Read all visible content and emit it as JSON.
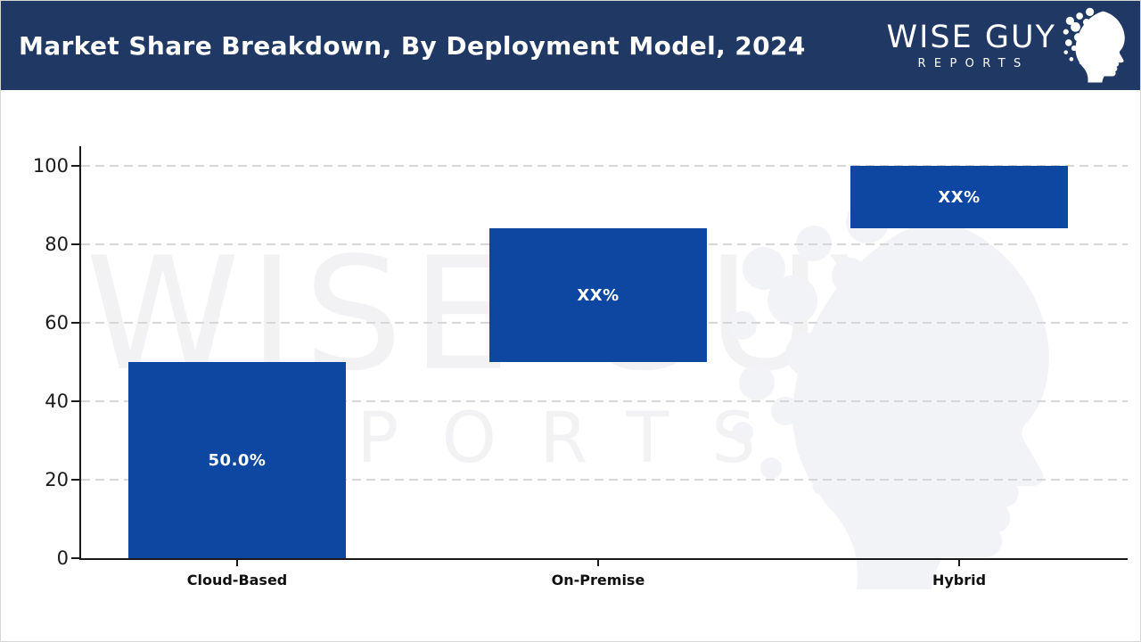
{
  "header": {
    "title": "Market Share Breakdown, By Deployment Model, 2024",
    "bg_color": "#1f3864",
    "logo": {
      "brand": "WISE GUY",
      "sub": "REPORTS"
    }
  },
  "watermark": {
    "brand": "WISE GUY",
    "sub": "REPORTS"
  },
  "chart_data": {
    "type": "bar",
    "variant": "floating stacked segments (waterfall style), one segment per category",
    "title": "Market Share Breakdown, By Deployment Model, 2024",
    "categories": [
      "Cloud-Based",
      "On-Premise",
      "Hybrid"
    ],
    "bars": [
      {
        "category": "Cloud-Based",
        "from": 0,
        "to": 50,
        "label": "50.0%"
      },
      {
        "category": "On-Premise",
        "from": 50,
        "to": 84,
        "label": "XX%"
      },
      {
        "category": "Hybrid",
        "from": 84,
        "to": 100,
        "label": "XX%"
      }
    ],
    "xlabel": "",
    "ylabel": "",
    "yticks": [
      0,
      20,
      40,
      60,
      80,
      100
    ],
    "ylim": [
      0,
      105
    ],
    "bar_color": "#0d47a1",
    "bar_label_color": "#ffffff",
    "grid": "horizontal dashed gridlines at y-ticks",
    "gridline_color": "#d7d7d7",
    "axis_color": "#1a1a1a",
    "legend": "none"
  }
}
